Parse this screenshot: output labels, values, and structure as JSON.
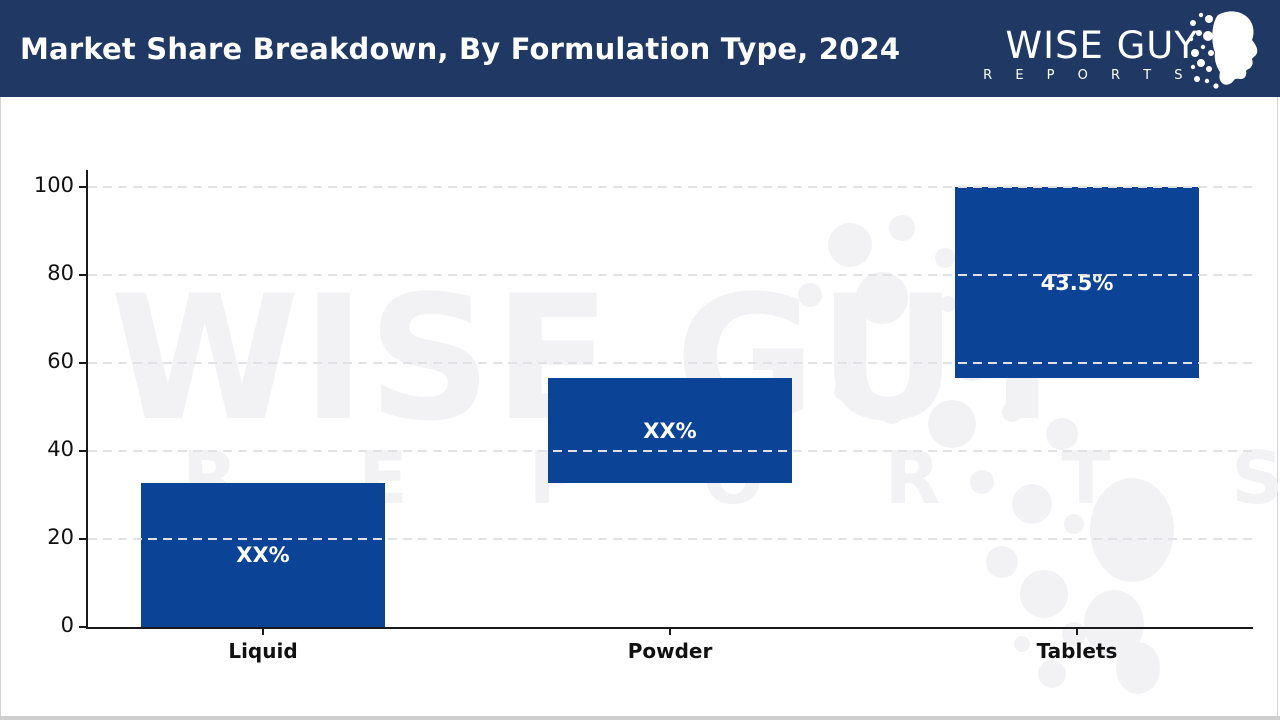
{
  "header": {
    "title": "Market Share Breakdown, By Formulation Type, 2024",
    "background_color": "#1f3864",
    "logo": {
      "line1": "WISE GUY",
      "line2": "R E P O R T S"
    }
  },
  "watermark": {
    "line1": "WISE GUY",
    "line2": "R E P O R T S",
    "color": "#f2f2f4"
  },
  "chart_data": {
    "type": "bar",
    "subtype": "floating-waterfall",
    "title": "Market Share Breakdown, By Formulation Type, 2024",
    "categories": [
      "Liquid",
      "Powder",
      "Tablets"
    ],
    "segments": [
      {
        "category": "Liquid",
        "start": 0,
        "end": 32.7,
        "value_label": "XX%"
      },
      {
        "category": "Powder",
        "start": 32.7,
        "end": 56.5,
        "value_label": "XX%"
      },
      {
        "category": "Tablets",
        "start": 56.5,
        "end": 100,
        "value_label": "43.5%"
      }
    ],
    "y_ticks": [
      0,
      20,
      40,
      60,
      80,
      100
    ],
    "ylim": [
      0,
      104
    ],
    "xlabel": "",
    "ylabel": "",
    "legend": "none",
    "grid": "horizontal-dashed",
    "grid_color": "#e2e2e6",
    "axis_color": "#1a1a1a",
    "bar_color": "#0b4397",
    "bar_label_color": "#ffffff"
  }
}
